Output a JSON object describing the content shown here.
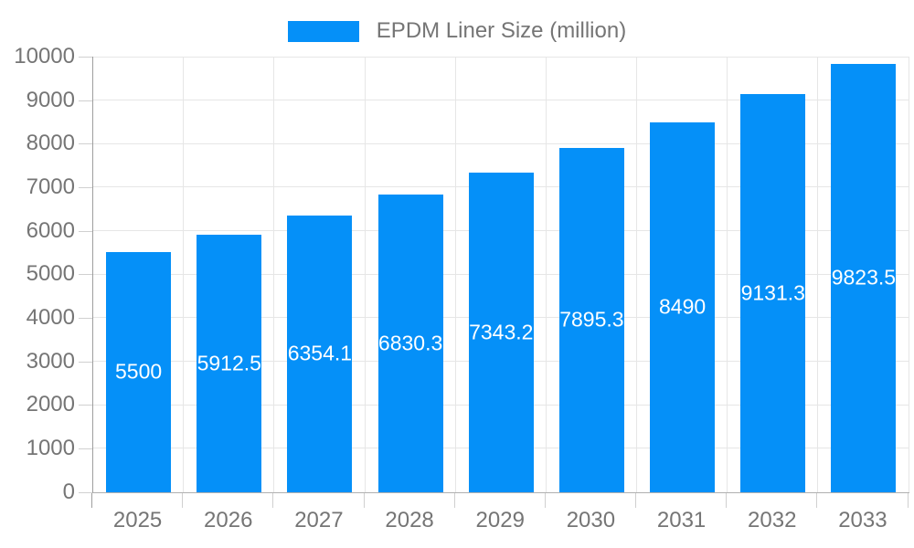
{
  "legend": {
    "label": "EPDM Liner Size (million)"
  },
  "colors": {
    "bar": "#0590f8",
    "grid": "#e6e6e6",
    "axis_line": "#9e9e9e",
    "baseline": "#b0b0b0",
    "tick": "#d0d0d0",
    "axis_text": "#757575",
    "value_text": "#ffffff"
  },
  "chart_data": {
    "type": "bar",
    "title": "EPDM Liner Size (million)",
    "series_name": "EPDM Liner Size (million)",
    "categories": [
      "2025",
      "2026",
      "2027",
      "2028",
      "2029",
      "2030",
      "2031",
      "2032",
      "2033"
    ],
    "values": [
      5500,
      5912.5,
      6354.1,
      6830.3,
      7343.2,
      7895.3,
      8490,
      9131.3,
      9823.5
    ],
    "value_labels": [
      "5500",
      "5912.5",
      "6354.1",
      "6830.3",
      "7343.2",
      "7895.3",
      "8490",
      "9131.3",
      "9823.5"
    ],
    "xlabel": "",
    "ylabel": "",
    "ylim": [
      0,
      10000
    ],
    "y_ticks": [
      0,
      1000,
      2000,
      3000,
      4000,
      5000,
      6000,
      7000,
      8000,
      9000,
      10000
    ],
    "grid": true,
    "legend_position": "top"
  }
}
